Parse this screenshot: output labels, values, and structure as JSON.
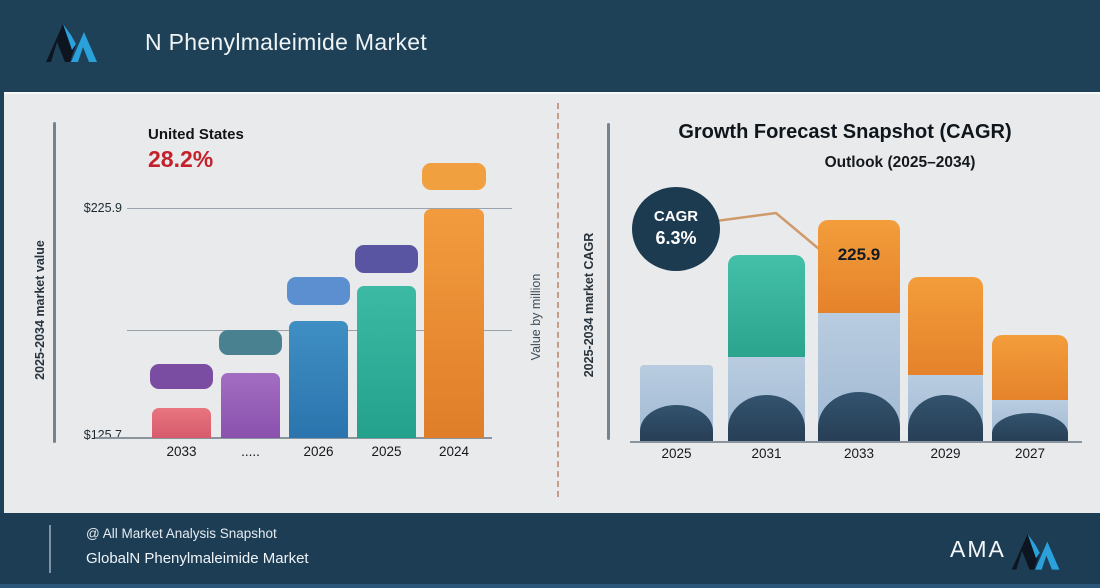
{
  "header": {
    "title": "N Phenylmaleimide Market",
    "logo": "ama-mountain-logo"
  },
  "left_chart": {
    "region_label": "United States",
    "highlight_value": "28.2%",
    "y_axis_label": "2025-2034 market value",
    "y_ticks": {
      "top": "$225.9",
      "bottom": "$125.7"
    },
    "mid_axis_label": "Value by million"
  },
  "right_chart": {
    "title": "Growth Forecast Snapshot (CAGR)",
    "subtitle": "Outlook (2025–2034)",
    "y_axis_label": "2025-2034 market CAGR",
    "badge": {
      "line1": "CAGR",
      "line2": "6.3%"
    },
    "data_label": "225.9"
  },
  "footer": {
    "line1": "@ All Market Analysis Snapshot",
    "line2": "GlobalN Phenylmaleimide Market",
    "brand": "AMA"
  },
  "colors": {
    "navy": "#1f4157",
    "panel": "#e9eaeb",
    "red": "#c3202b",
    "badge_navy": "#1c3a50",
    "connector": "#cf9a6a",
    "dome_navy_top": "#33536e",
    "dome_navy_bottom": "#273f56",
    "mid_blue_top": "#b9cce0",
    "mid_blue_bottom": "#a0b9d3",
    "logo_black": "#0d1520",
    "logo_blue": "#2ba1dc"
  },
  "chart_data": [
    {
      "type": "bar",
      "title": "United States",
      "annotation": "28.2%",
      "ylabel": "2025-2034 market value",
      "yticks_labeled": [
        "$225.9",
        "$125.7"
      ],
      "ylim": [
        125.7,
        250
      ],
      "units": "Value by million ($)",
      "categories": [
        "2033",
        ".....",
        "2026",
        "2025",
        "2024"
      ],
      "bars": [
        {
          "label": "2033",
          "value": 139,
          "cap_range": [
            147,
            158
          ],
          "color_top": "#e8757f",
          "color_bottom": "#d75b6c",
          "cap_color": "#7b4da2"
        },
        {
          "label": ".....",
          "value": 154,
          "cap_range": [
            162,
            173
          ],
          "color_top": "#a26ec2",
          "color_bottom": "#8a51ad",
          "cap_color": "#4a8191"
        },
        {
          "label": "2026",
          "value": 177,
          "cap_range": [
            184,
            196
          ],
          "color_top": "#3f8fc4",
          "color_bottom": "#2b74ad",
          "cap_color": "#5b8fd0"
        },
        {
          "label": "2025",
          "value": 192,
          "cap_range": [
            198,
            210
          ],
          "color_top": "#3cbaa4",
          "color_bottom": "#24a18c",
          "cap_color": "#5a55a2"
        },
        {
          "label": "2024",
          "value": 226,
          "cap_range": [
            234,
            246
          ],
          "color_top": "#f29b3e",
          "color_bottom": "#e07e29",
          "cap_color": "#f0a03e"
        }
      ]
    },
    {
      "type": "bar",
      "title": "Growth Forecast Snapshot (CAGR)",
      "subtitle": "Outlook (2025–2034)",
      "cagr": "6.3%",
      "ylabel": "2025-2034 market CAGR",
      "labeled_point": {
        "category": "2033",
        "value": 225.9
      },
      "categories": [
        "2025",
        "2031",
        "2033",
        "2029",
        "2027"
      ],
      "bars": [
        {
          "label": "2025",
          "total": 78,
          "mid": 78,
          "dome": 37,
          "top_color": null,
          "top_color2": null
        },
        {
          "label": "2031",
          "total": 190,
          "mid": 86,
          "dome": 47,
          "top_color": "#45c0a8",
          "top_color2": "#2aa38c"
        },
        {
          "label": "2033",
          "total": 226,
          "mid": 131,
          "dome": 50,
          "top_color": "#f39d3b",
          "top_color2": "#e4812a"
        },
        {
          "label": "2029",
          "total": 168,
          "mid": 67,
          "dome": 47,
          "top_color": "#f39d3b",
          "top_color2": "#e4812a"
        },
        {
          "label": "2027",
          "total": 108,
          "mid": 42,
          "dome": 29,
          "top_color": "#f39d3b",
          "top_color2": "#e4812a"
        }
      ]
    }
  ]
}
